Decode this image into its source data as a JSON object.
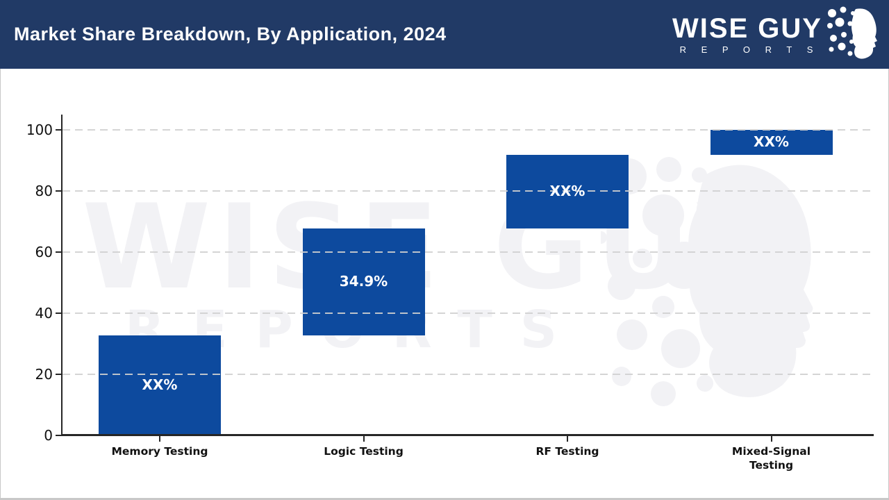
{
  "header": {
    "title": "Market Share Breakdown, By Application, 2024",
    "logo": {
      "line1": "WISE GUY",
      "line2": "R E P O R T S"
    }
  },
  "watermark": {
    "line1": "WISE GUY",
    "line2": "REPORTS"
  },
  "chart_data": {
    "type": "bar",
    "subtype": "waterfall-floating-bars",
    "title": "Market Share Breakdown, By Application, 2024",
    "xlabel": "",
    "ylabel": "",
    "ylim": [
      0,
      100
    ],
    "yticks": [
      0,
      20,
      40,
      60,
      80,
      100
    ],
    "grid": "horizontal dashed, drawn over bars",
    "legend": "none",
    "bar_color": "#0d4a9e",
    "categories": [
      "Memory Testing",
      "Logic Testing",
      "RF Testing",
      "Mixed-Signal Testing"
    ],
    "segments": [
      {
        "category": "Memory Testing",
        "start": 0,
        "end": 32.8,
        "span": 32.8,
        "label": "XX%"
      },
      {
        "category": "Logic Testing",
        "start": 32.8,
        "end": 67.7,
        "span": 34.9,
        "label": "34.9%"
      },
      {
        "category": "RF Testing",
        "start": 67.7,
        "end": 91.9,
        "span": 24.2,
        "label": "XX%"
      },
      {
        "category": "Mixed-Signal Testing",
        "start": 91.9,
        "end": 100,
        "span": 8.1,
        "label": "XX%"
      }
    ]
  }
}
